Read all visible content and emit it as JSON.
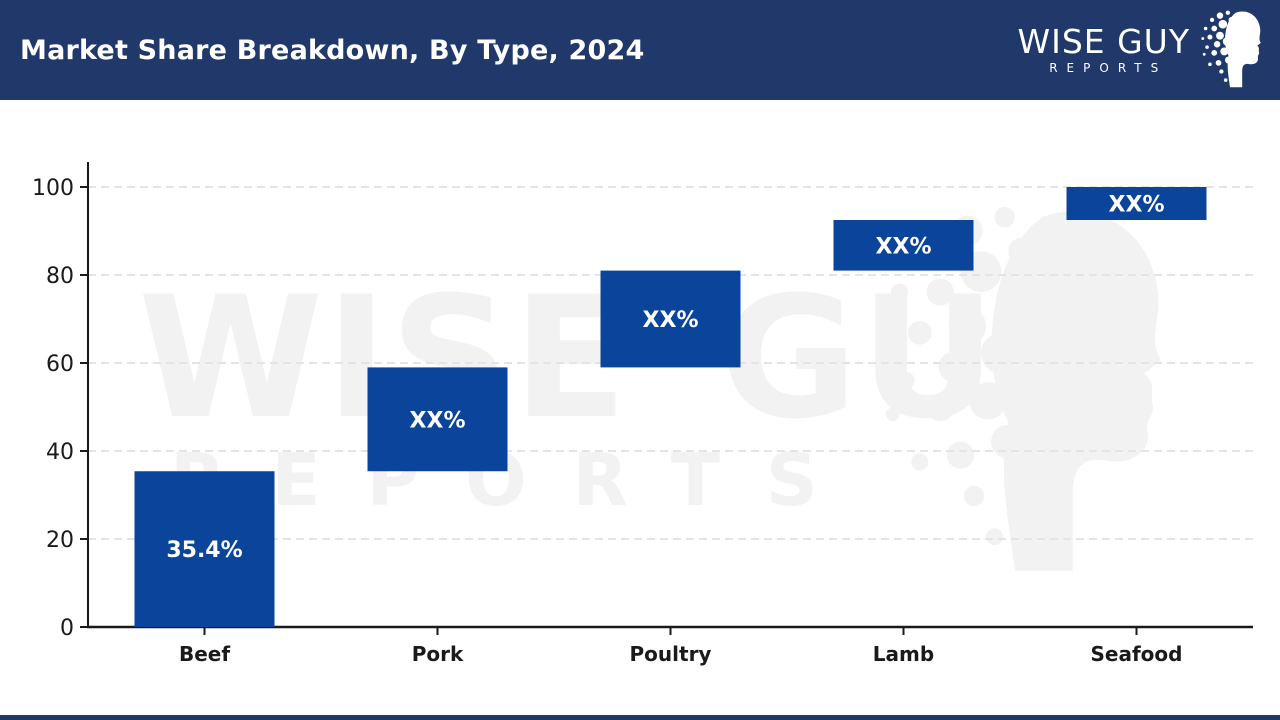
{
  "header": {
    "title": "Market Share Breakdown, By Type, 2024",
    "logo": {
      "line1": "WISE GUY",
      "line2": "REPORTS"
    }
  },
  "watermark": {
    "line1": "WISE GUY",
    "line2": "REPORTS"
  },
  "colors": {
    "header_bg": "#21386B",
    "header_text": "#FFFFFF",
    "bar": "#0A459B",
    "bar_label": "#FFFFFF",
    "axis": "#1A1A1A",
    "grid": "#E4E4E4",
    "watermark": "#F2F2F2",
    "footer_bg": "#21386B"
  },
  "chart_data": {
    "type": "bar",
    "subtype": "waterfall",
    "title": "Market Share Breakdown, By Type, 2024",
    "categories": [
      "Beef",
      "Pork",
      "Poultry",
      "Lamb",
      "Seafood"
    ],
    "segments": [
      {
        "category": "Beef",
        "start": 0,
        "end": 35.4,
        "label": "35.4%"
      },
      {
        "category": "Pork",
        "start": 35.4,
        "end": 59,
        "label": "XX%"
      },
      {
        "category": "Poultry",
        "start": 59,
        "end": 81,
        "label": "XX%"
      },
      {
        "category": "Lamb",
        "start": 81,
        "end": 92.5,
        "label": "XX%"
      },
      {
        "category": "Seafood",
        "start": 92.5,
        "end": 100,
        "label": "XX%"
      }
    ],
    "ylim": [
      0,
      100
    ],
    "yticks": [
      0,
      20,
      40,
      60,
      80,
      100
    ],
    "grid": true,
    "grid_style": "dashed",
    "legend": "none",
    "xlabel": "",
    "ylabel": ""
  }
}
